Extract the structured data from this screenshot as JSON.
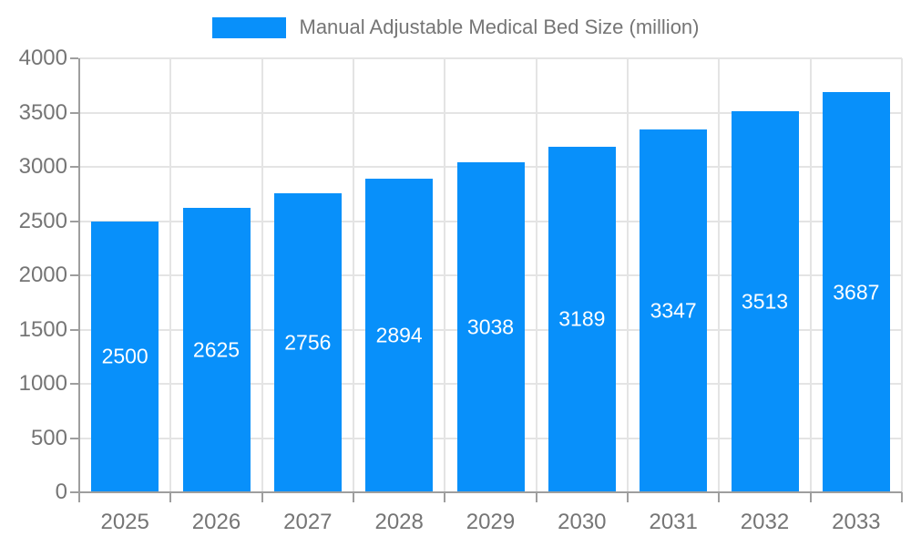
{
  "chart_data": {
    "type": "bar",
    "title": "Manual Adjustable Medical Bed Size (million)",
    "categories": [
      "2025",
      "2026",
      "2027",
      "2028",
      "2029",
      "2030",
      "2031",
      "2032",
      "2033"
    ],
    "values": [
      2500,
      2625,
      2756,
      2894,
      3038,
      3189,
      3347,
      3513,
      3687
    ],
    "xlabel": "",
    "ylabel": "",
    "ylim": [
      0,
      4000
    ],
    "ytick_interval": 500,
    "yticks": [
      0,
      500,
      1000,
      1500,
      2000,
      2500,
      3000,
      3500,
      4000
    ],
    "grid": true,
    "legend_position": "top",
    "bar_labels_inside": true,
    "colors": {
      "bar": "#0890fa",
      "bar_label": "#ffffff",
      "axis_text": "#757575",
      "grid_line": "#e4e4e4",
      "axis_line": "#9e9e9e"
    }
  },
  "legend": {
    "label": "Manual Adjustable Medical Bed Size (million)"
  }
}
